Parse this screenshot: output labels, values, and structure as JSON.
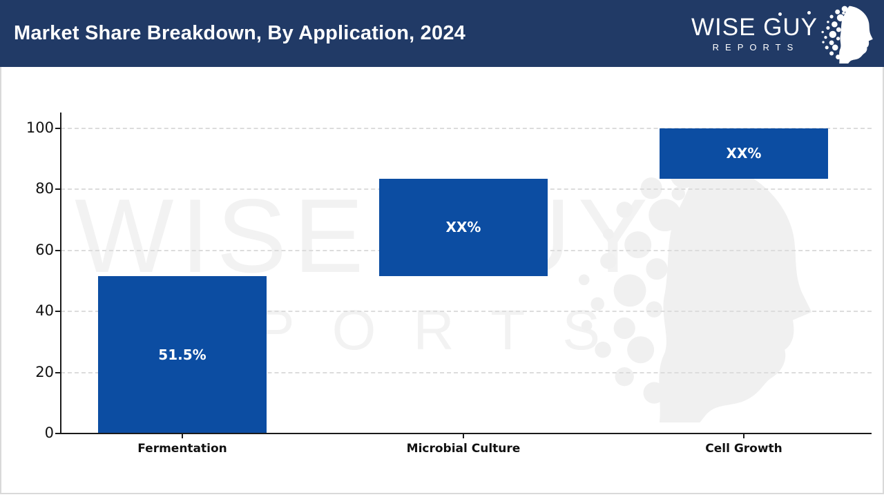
{
  "header": {
    "title": "Market Share Breakdown, By Application, 2024",
    "logo": {
      "wordmark": "WISE GUY",
      "sub": "REPORTS"
    }
  },
  "watermark": {
    "wordmark": "WISE GUY",
    "sub": "REPORTS"
  },
  "chart_data": {
    "type": "bar",
    "subtype": "waterfall",
    "title": "Market Share Breakdown, By Application, 2024",
    "categories": [
      "Fermentation",
      "Microbial Culture",
      "Cell Growth"
    ],
    "segments": [
      {
        "category": "Fermentation",
        "start": 0,
        "end": 51.5,
        "label": "51.5%"
      },
      {
        "category": "Microbial Culture",
        "start": 51.5,
        "end": 83.5,
        "label": "XX%"
      },
      {
        "category": "Cell Growth",
        "start": 83.5,
        "end": 100,
        "label": "XX%"
      }
    ],
    "ylim": [
      0,
      100
    ],
    "yticks": [
      0,
      20,
      40,
      60,
      80,
      100
    ],
    "grid": "horizontal-dashed",
    "legend": "none",
    "bar_color": "#0C4DA2",
    "bar_label_color": "#FFFFFF",
    "axis_color": "#1A1A1A",
    "gridline_color": "#DCDCDC"
  },
  "colors": {
    "header_bg": "#213A66",
    "watermark": "#F2F2F2",
    "frame": "#D9D9D9"
  }
}
